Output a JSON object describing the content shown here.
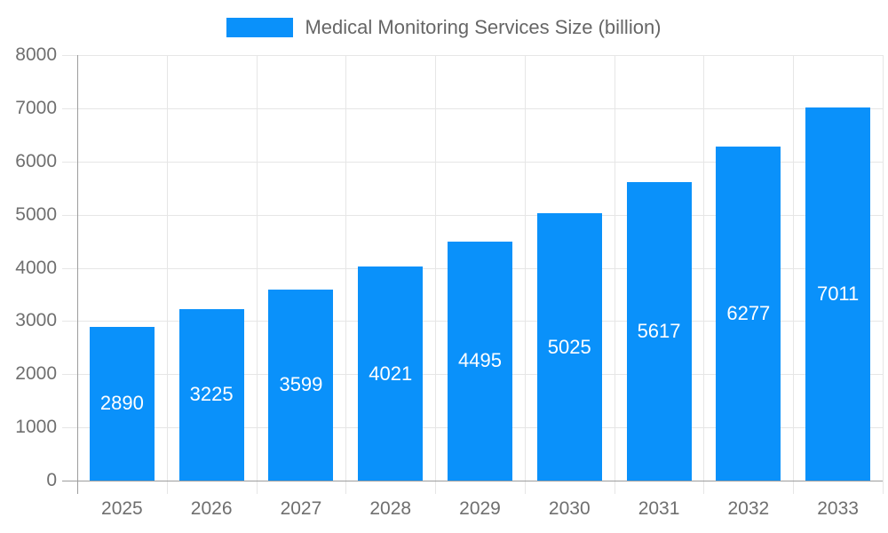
{
  "chart_data": {
    "type": "bar",
    "title": "Medical Monitoring Services Size (billion)",
    "categories": [
      "2025",
      "2026",
      "2027",
      "2028",
      "2029",
      "2030",
      "2031",
      "2032",
      "2033"
    ],
    "values": [
      2890,
      3225,
      3599,
      4021,
      4495,
      5025,
      5617,
      6277,
      7011
    ],
    "series": [
      {
        "name": "Medical Monitoring Services Size (billion)",
        "values": [
          2890,
          3225,
          3599,
          4021,
          4495,
          5025,
          5617,
          6277,
          7011
        ]
      }
    ],
    "xlabel": "",
    "ylabel": "",
    "ylim": [
      0,
      8000
    ],
    "y_ticks": [
      0,
      1000,
      2000,
      3000,
      4000,
      5000,
      6000,
      7000,
      8000
    ],
    "grid": true,
    "legend_position": "top-center",
    "value_labels": "inside-center",
    "colors": {
      "bar": "#0a91fa",
      "grid": "#e6e6e6",
      "axis_border": "#9d9d9d",
      "tick_text": "#6f6f6f",
      "legend_text": "#666666",
      "value_label": "#ffffff"
    }
  }
}
